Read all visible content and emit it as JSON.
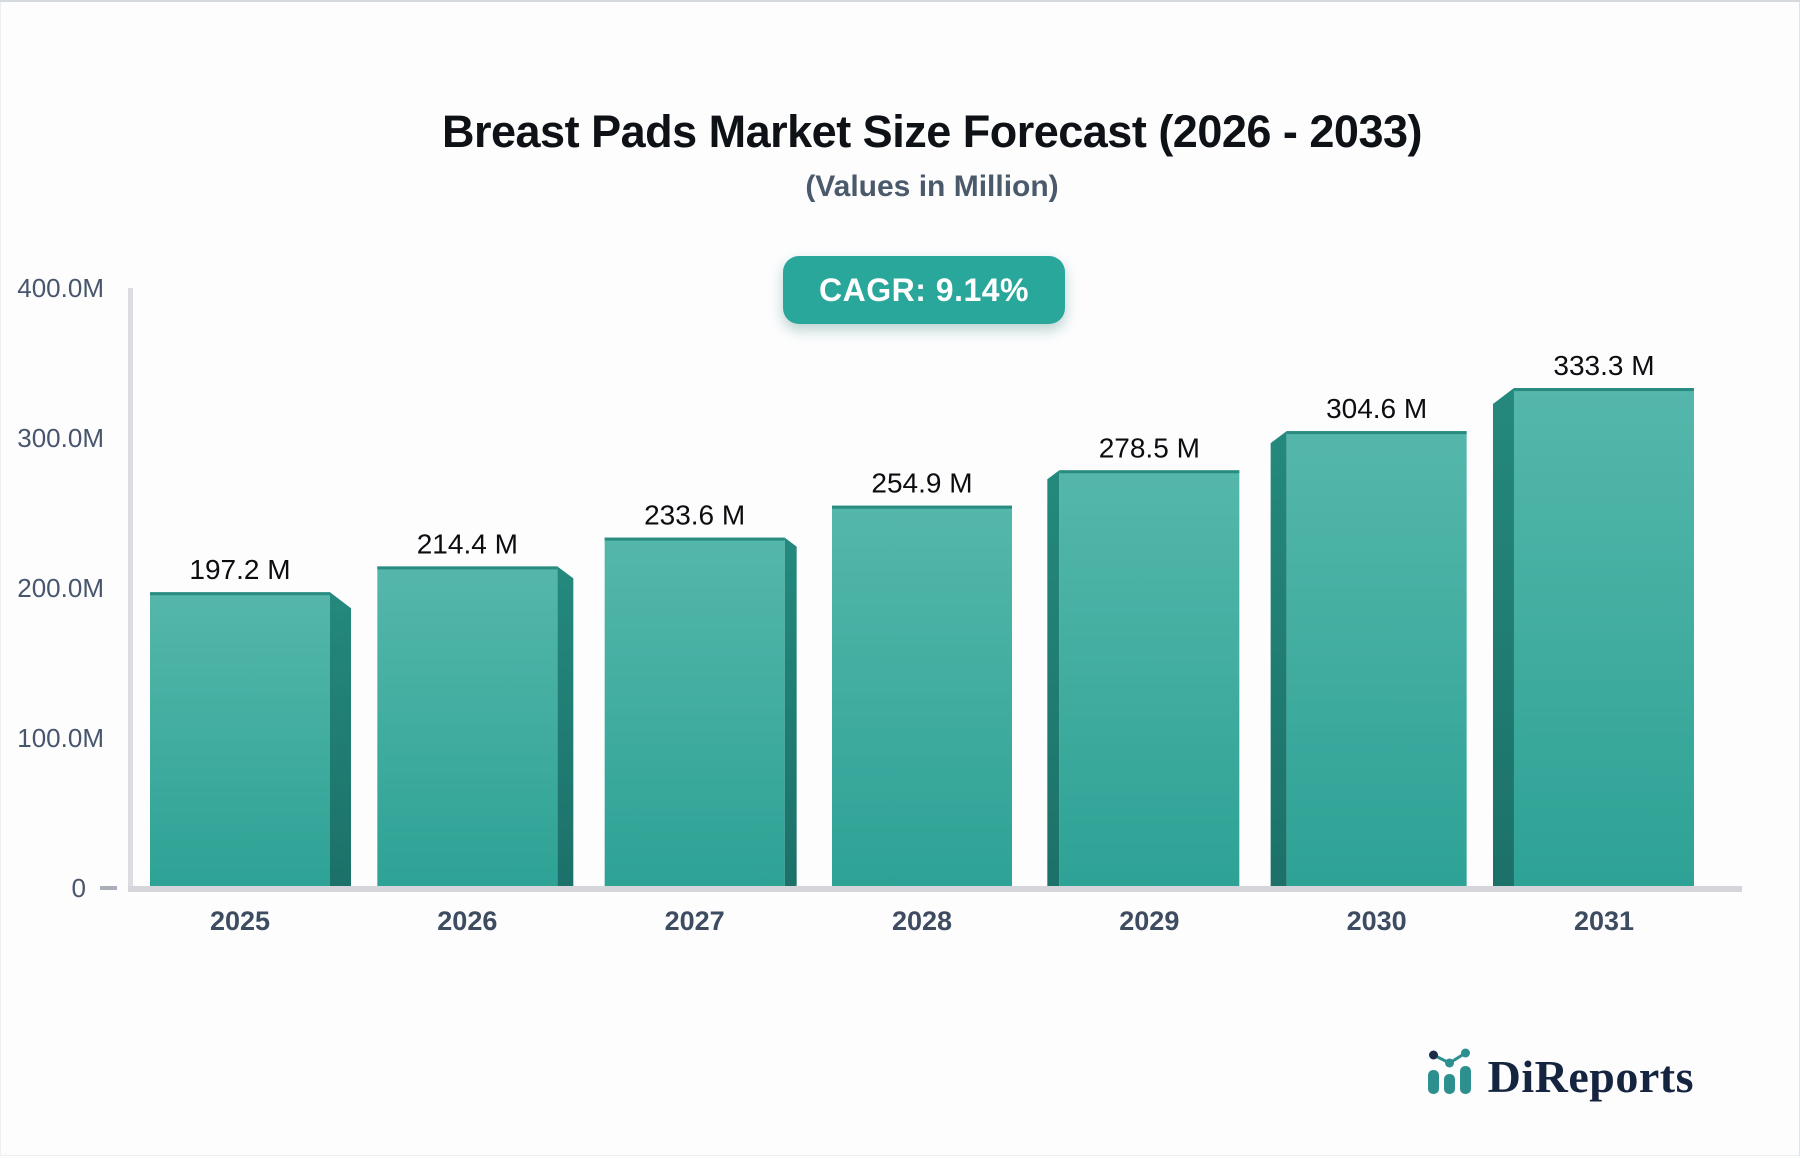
{
  "chart_data": {
    "type": "bar",
    "title": "Breast Pads Market Size Forecast (2026 - 2033)",
    "subtitle": "(Values in Million)",
    "cagr_label": "CAGR: 9.14%",
    "categories": [
      "2025",
      "2026",
      "2027",
      "2028",
      "2029",
      "2030",
      "2031"
    ],
    "values": [
      197.2,
      214.4,
      233.6,
      254.9,
      278.5,
      304.6,
      333.3
    ],
    "value_suffix": " M",
    "xlabel": "",
    "ylabel": "",
    "ylim": [
      0,
      400
    ],
    "grid": "off",
    "legend": "none",
    "y_axis": {
      "ticks": [
        {
          "value": 400,
          "label": "400.0M"
        },
        {
          "value": 300,
          "label": "300.0M"
        },
        {
          "value": 200,
          "label": "200.0M"
        },
        {
          "value": 100,
          "label": "100.0M"
        },
        {
          "value": 0,
          "label": "0"
        }
      ]
    },
    "colors": {
      "bar_face_top": "#55b7ab",
      "bar_face_bottom": "#2da295",
      "bar_top_edge": "#2a8c80",
      "bar_side_top": "#24897d",
      "bar_side_bottom": "#1c7169",
      "axis_line": "#dcdde2",
      "baseline": "#d4d6db",
      "zero_dash": "#a9afb9",
      "tick_label": "#47566c",
      "category_label": "#3d4c61",
      "value_label": "#0b0d10",
      "badge_bg": "#2aa79b",
      "badge_text": "#ffffff",
      "title": "#0e1116",
      "subtitle": "#4b5a6b",
      "logo_text": "#152540",
      "logo_teal": "#2e8f8f",
      "logo_navy": "#1c2b4a"
    }
  },
  "logo": {
    "text": "DiReports"
  }
}
